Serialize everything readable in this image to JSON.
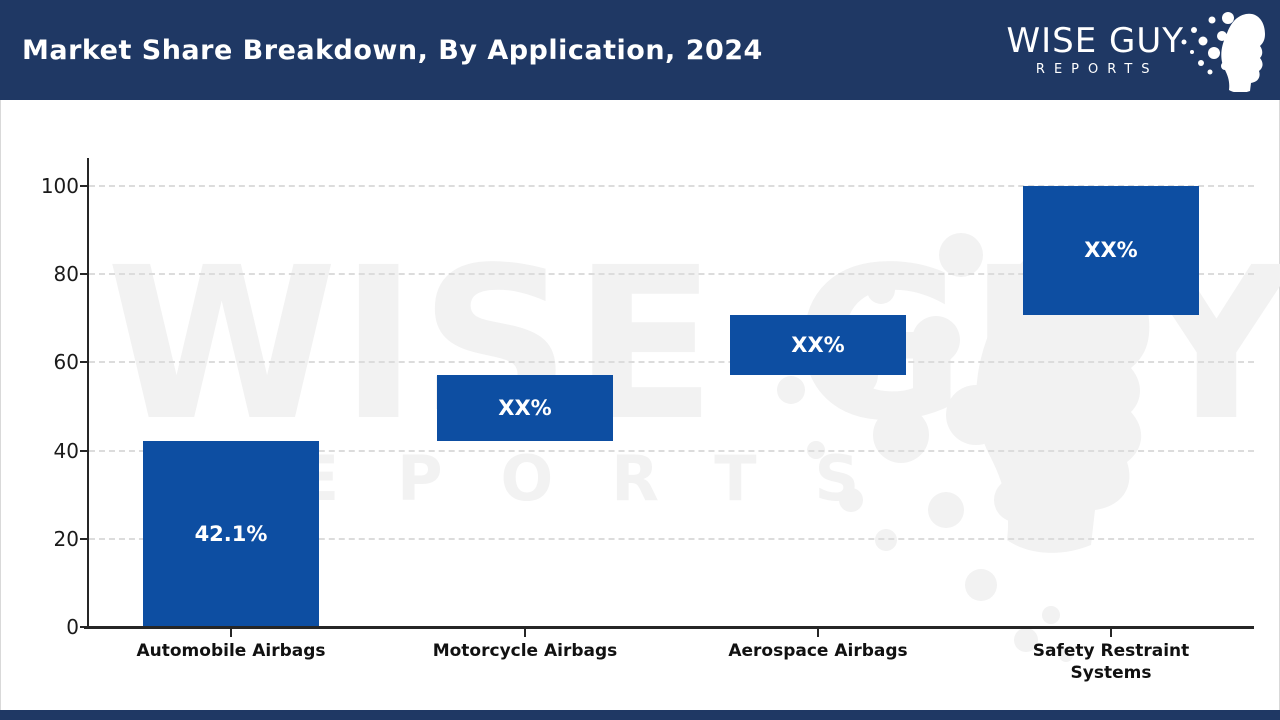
{
  "header": {
    "title": "Market Share Breakdown, By Application, 2024",
    "bg_color": "#1f3864",
    "logo": {
      "line1": "WISE GUY",
      "line2": "REPORTS"
    }
  },
  "watermark": {
    "line1": "WISE GUY",
    "line2": "REPORTS"
  },
  "chart_data": {
    "type": "bar",
    "subtype": "floating-waterfall-share",
    "title": "Market Share Breakdown, By Application, 2024",
    "xlabel": "",
    "ylabel": "",
    "categories": [
      "Automobile Airbags",
      "Motorcycle Airbags",
      "Aerospace Airbags",
      "Safety Restraint Systems"
    ],
    "bars": [
      {
        "category": "Automobile Airbags",
        "label": "42.1%",
        "start": 0,
        "end": 42.1
      },
      {
        "category": "Motorcycle Airbags",
        "label": "XX%",
        "start": 42.1,
        "end": 57.2
      },
      {
        "category": "Aerospace Airbags",
        "label": "XX%",
        "start": 57.2,
        "end": 70.8
      },
      {
        "category": "Safety Restraint Systems",
        "label": "XX%",
        "start": 70.8,
        "end": 100
      }
    ],
    "yticks": [
      0,
      20,
      40,
      60,
      80,
      100
    ],
    "ylim": [
      0,
      106
    ],
    "grid": "horizontal-dashed",
    "legend": "none",
    "bar_color": "#0d4ea2",
    "bar_label_color": "#ffffff",
    "axis_color": "#262626",
    "grid_color": "#dcdcdc"
  },
  "footer": {
    "bg_color": "#1f3864"
  }
}
